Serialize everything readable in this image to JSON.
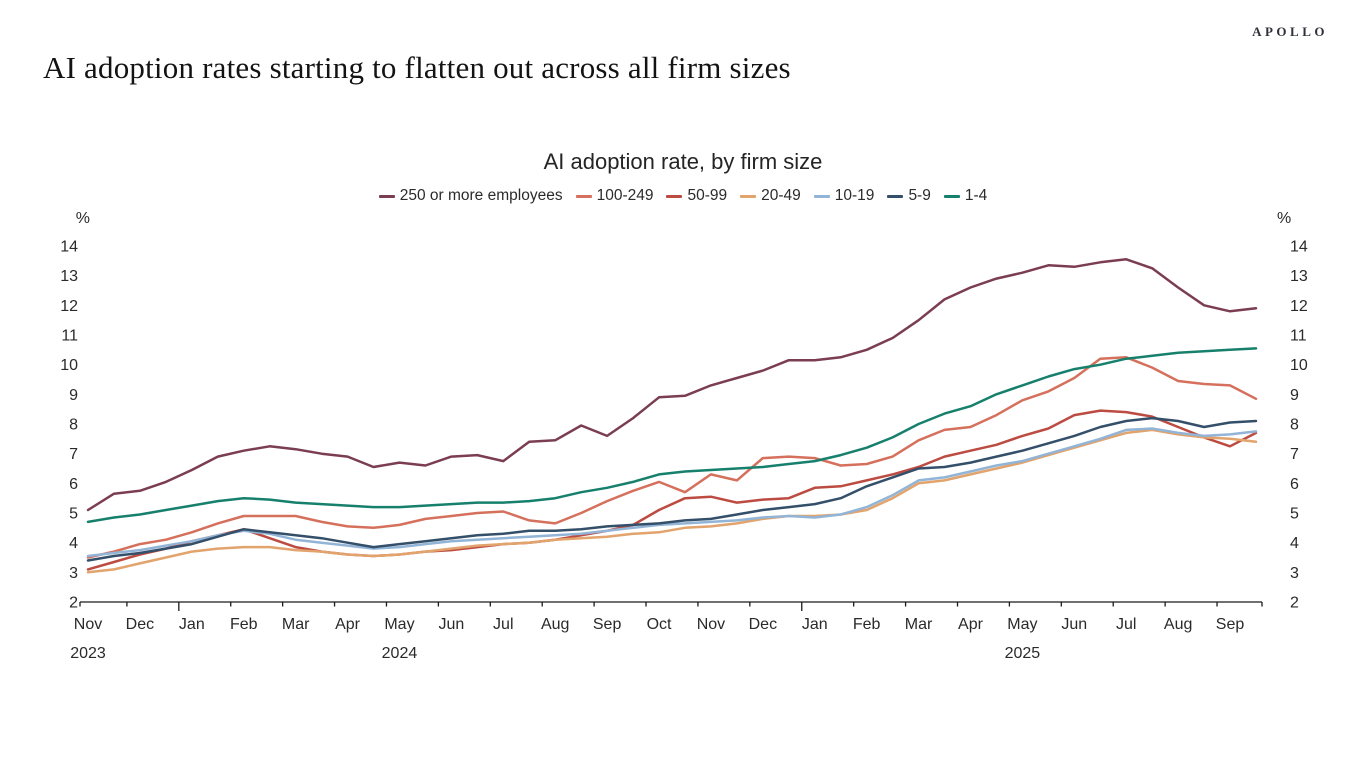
{
  "brand": "APOLLO",
  "page_title": "AI adoption rates starting to flatten out across all firm sizes",
  "chart_data": {
    "type": "line",
    "title": "AI adoption rate, by firm size",
    "ylabel_left": "%",
    "ylabel_right": "%",
    "ylim": [
      2,
      14
    ],
    "y_ticks": [
      2,
      3,
      4,
      5,
      6,
      7,
      8,
      9,
      10,
      11,
      12,
      13,
      14
    ],
    "grid": "off",
    "legend_position": "top",
    "points_per_month": 2,
    "x_months": [
      "Nov",
      "Dec",
      "Jan",
      "Feb",
      "Mar",
      "Apr",
      "May",
      "Jun",
      "Jul",
      "Aug",
      "Sep",
      "Oct",
      "Nov",
      "Dec",
      "Jan",
      "Feb",
      "Mar",
      "Apr",
      "May",
      "Jun",
      "Jul",
      "Aug",
      "Sep"
    ],
    "x_years": [
      {
        "label": "2023",
        "month_index": 0
      },
      {
        "label": "2024",
        "month_index": 6
      },
      {
        "label": "2025",
        "month_index": 18
      }
    ],
    "series": [
      {
        "name": "250 or more employees",
        "color": "#7B3D51",
        "values": [
          5.1,
          5.65,
          5.75,
          6.05,
          6.45,
          6.9,
          7.1,
          7.25,
          7.15,
          7.0,
          6.9,
          6.55,
          6.7,
          6.6,
          6.9,
          6.95,
          6.75,
          7.4,
          7.45,
          7.95,
          7.6,
          8.2,
          8.9,
          8.95,
          9.3,
          9.55,
          9.8,
          10.15,
          10.15,
          10.25,
          10.5,
          10.9,
          11.5,
          12.2,
          12.6,
          12.9,
          13.1,
          13.35,
          13.3,
          13.45,
          13.55,
          13.25,
          12.6,
          12.0,
          11.8,
          11.9
        ]
      },
      {
        "name": "100-249",
        "color": "#D5705C",
        "values": [
          3.5,
          3.7,
          3.95,
          4.1,
          4.35,
          4.65,
          4.9,
          4.9,
          4.9,
          4.7,
          4.55,
          4.5,
          4.6,
          4.8,
          4.9,
          5.0,
          5.05,
          4.75,
          4.65,
          5.0,
          5.4,
          5.75,
          6.05,
          5.7,
          6.3,
          6.1,
          6.85,
          6.9,
          6.85,
          6.6,
          6.65,
          6.9,
          7.45,
          7.8,
          7.9,
          8.3,
          8.8,
          9.1,
          9.55,
          10.2,
          10.25,
          9.9,
          9.45,
          9.35,
          9.3,
          8.85
        ]
      },
      {
        "name": "50-99",
        "color": "#BC4B41",
        "values": [
          3.1,
          3.35,
          3.6,
          3.8,
          4.05,
          4.25,
          4.45,
          4.15,
          3.85,
          3.7,
          3.6,
          3.55,
          3.6,
          3.7,
          3.75,
          3.85,
          3.95,
          4.0,
          4.1,
          4.25,
          4.4,
          4.6,
          5.1,
          5.5,
          5.55,
          5.35,
          5.45,
          5.5,
          5.85,
          5.9,
          6.1,
          6.3,
          6.55,
          6.9,
          7.1,
          7.3,
          7.6,
          7.85,
          8.3,
          8.45,
          8.4,
          8.25,
          7.9,
          7.55,
          7.25,
          7.7
        ]
      },
      {
        "name": "20-49",
        "color": "#E2A36C",
        "values": [
          3.0,
          3.1,
          3.3,
          3.5,
          3.7,
          3.8,
          3.85,
          3.85,
          3.75,
          3.7,
          3.6,
          3.55,
          3.6,
          3.7,
          3.8,
          3.9,
          3.95,
          4.0,
          4.1,
          4.15,
          4.2,
          4.3,
          4.35,
          4.5,
          4.55,
          4.65,
          4.8,
          4.9,
          4.9,
          4.95,
          5.1,
          5.5,
          6.0,
          6.1,
          6.3,
          6.5,
          6.7,
          6.95,
          7.2,
          7.45,
          7.7,
          7.8,
          7.65,
          7.55,
          7.5,
          7.4
        ]
      },
      {
        "name": "10-19",
        "color": "#92B4D6",
        "values": [
          3.55,
          3.65,
          3.75,
          3.9,
          4.05,
          4.25,
          4.4,
          4.3,
          4.1,
          4.0,
          3.9,
          3.8,
          3.85,
          3.95,
          4.05,
          4.1,
          4.15,
          4.2,
          4.25,
          4.3,
          4.4,
          4.5,
          4.6,
          4.65,
          4.7,
          4.75,
          4.85,
          4.9,
          4.85,
          4.95,
          5.2,
          5.6,
          6.1,
          6.2,
          6.4,
          6.6,
          6.75,
          7.0,
          7.25,
          7.5,
          7.8,
          7.85,
          7.7,
          7.6,
          7.65,
          7.75
        ]
      },
      {
        "name": "5-9",
        "color": "#344F69",
        "values": [
          3.4,
          3.55,
          3.65,
          3.8,
          3.95,
          4.2,
          4.45,
          4.35,
          4.25,
          4.15,
          4.0,
          3.85,
          3.95,
          4.05,
          4.15,
          4.25,
          4.3,
          4.4,
          4.4,
          4.45,
          4.55,
          4.6,
          4.65,
          4.75,
          4.8,
          4.95,
          5.1,
          5.2,
          5.3,
          5.5,
          5.9,
          6.2,
          6.5,
          6.55,
          6.7,
          6.9,
          7.1,
          7.35,
          7.6,
          7.9,
          8.1,
          8.2,
          8.1,
          7.9,
          8.05,
          8.1
        ]
      },
      {
        "name": "1-4",
        "color": "#17806D",
        "values": [
          4.7,
          4.85,
          4.95,
          5.1,
          5.25,
          5.4,
          5.5,
          5.45,
          5.35,
          5.3,
          5.25,
          5.2,
          5.2,
          5.25,
          5.3,
          5.35,
          5.35,
          5.4,
          5.5,
          5.7,
          5.85,
          6.05,
          6.3,
          6.4,
          6.45,
          6.5,
          6.55,
          6.65,
          6.75,
          6.95,
          7.2,
          7.55,
          8.0,
          8.35,
          8.6,
          9.0,
          9.3,
          9.6,
          9.85,
          10.0,
          10.2,
          10.3,
          10.4,
          10.45,
          10.5,
          10.55
        ]
      }
    ]
  }
}
